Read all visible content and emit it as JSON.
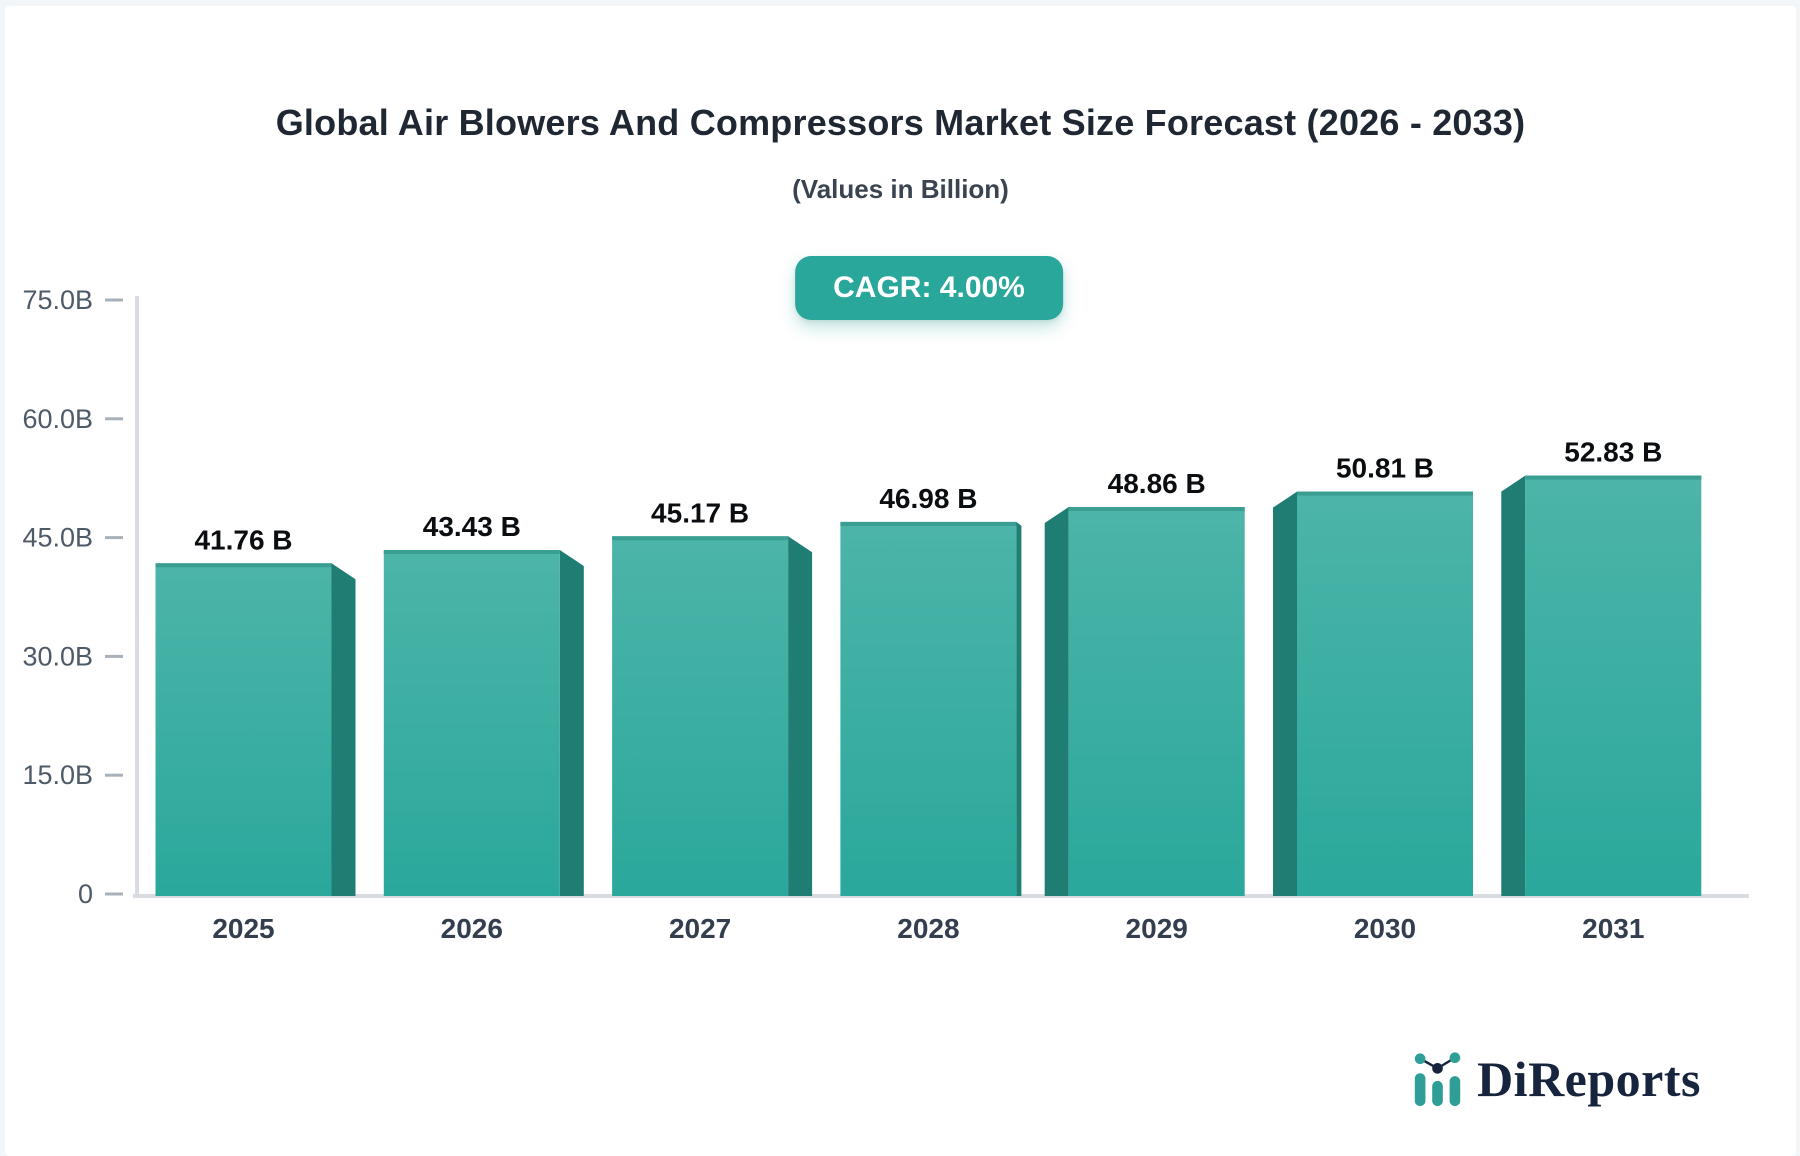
{
  "header": {
    "cagr_label": "CAGR: 4.00%"
  },
  "badge": {
    "label": "CAGR: 4.00%",
    "background": "#2aa79b",
    "text_color": "#ffffff"
  },
  "chart_data": {
    "type": "bar",
    "title": "Global Air Blowers And Compressors Market Size Forecast (2026 - 2033)",
    "subtitle": "(Values in Billion)",
    "categories": [
      "2025",
      "2026",
      "2027",
      "2028",
      "2029",
      "2030",
      "2031"
    ],
    "values": [
      41.76,
      43.43,
      45.17,
      46.98,
      48.86,
      50.81,
      52.83
    ],
    "bar_labels": [
      "41.76 B",
      "43.43 B",
      "45.17 B",
      "46.98 B",
      "48.86 B",
      "50.81 B",
      "52.83 B"
    ],
    "xlabel": "",
    "ylabel": "",
    "ylim": [
      0,
      75
    ],
    "y_ticks": [
      0,
      15,
      30,
      45,
      60,
      75
    ],
    "y_tick_labels": [
      "0",
      "15.0B",
      "30.0B",
      "45.0B",
      "60.0B",
      "75.0B"
    ],
    "grid": false,
    "legend_position": "none",
    "bar_style_3d": true,
    "colors": {
      "bar_top": "#4db4a9",
      "bar_bottom": "#2aa89b",
      "bar_side": "#1f7d73",
      "bar_top_edge": "#3a9e93",
      "axis_line": "#d9dde2",
      "tick_mark": "#a9b1ba",
      "y_tick_label": "#4e5a68",
      "x_tick_label": "#333f4f",
      "value_label": "#0b0e11"
    }
  },
  "logo": {
    "text": "DiReports",
    "text_color": "#16243d",
    "icon_accent": "#2f9e96",
    "icon_dark": "#16243d"
  }
}
